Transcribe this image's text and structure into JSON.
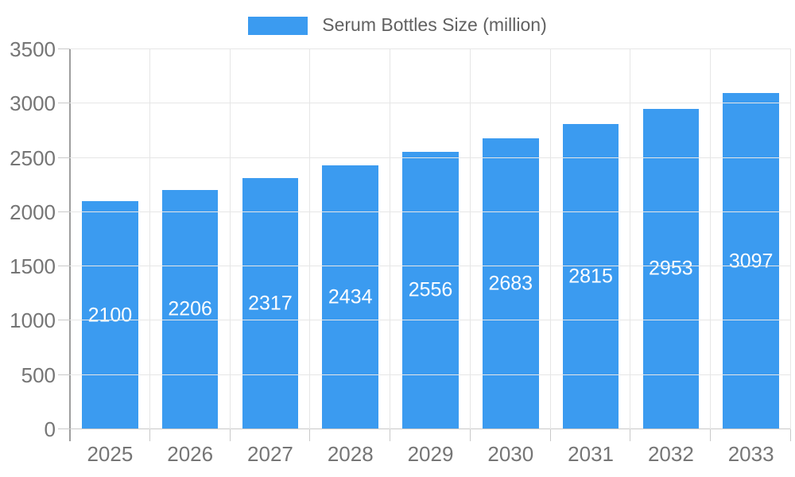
{
  "legend": {
    "label": "Serum Bottles Size (million)"
  },
  "chart_data": {
    "type": "bar",
    "title": "Serum Bottles Size (million)",
    "categories": [
      "2025",
      "2026",
      "2027",
      "2028",
      "2029",
      "2030",
      "2031",
      "2032",
      "2033"
    ],
    "values": [
      2100,
      2206,
      2317,
      2434,
      2556,
      2683,
      2815,
      2953,
      3097
    ],
    "xlabel": "",
    "ylabel": "",
    "ylim": [
      0,
      3500
    ],
    "yticks": [
      0,
      500,
      1000,
      1500,
      2000,
      2500,
      3000,
      3500
    ],
    "grid": true,
    "legend_position": "top-center",
    "bar_color": "#3B9BF0",
    "value_label_color": "#FFFFFF",
    "value_label_position": "inside-middle",
    "axis_text_color": "#757575",
    "gridline_color": "#E6E6E6"
  }
}
